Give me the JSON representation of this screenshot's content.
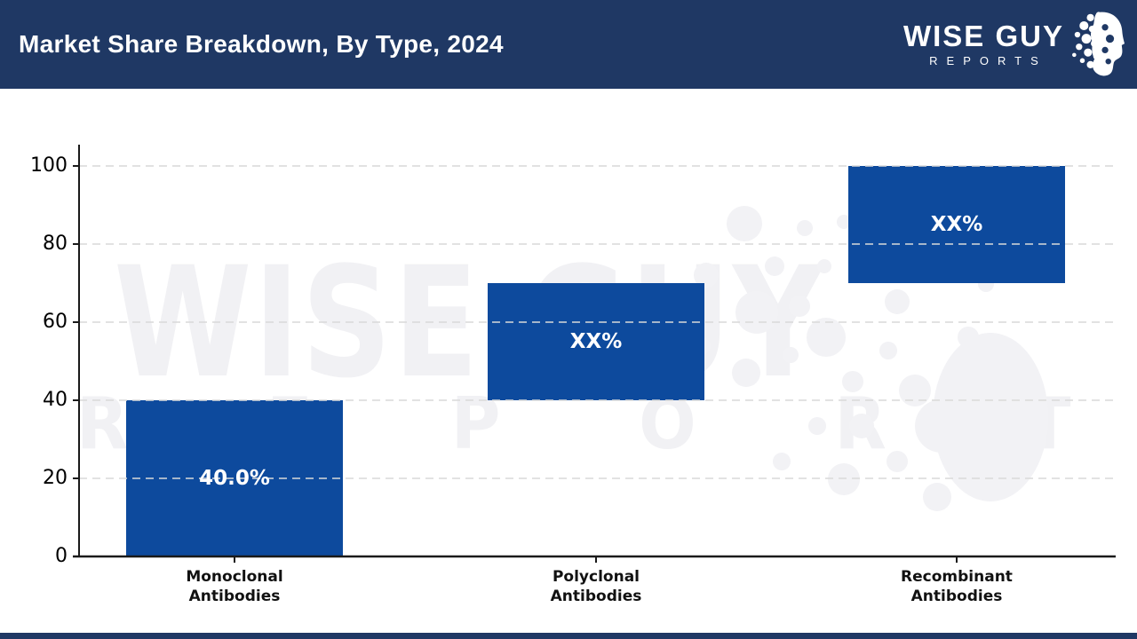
{
  "header": {
    "title": "Market Share Breakdown, By Type, 2024",
    "logo": {
      "brand_top": "WISE GUY",
      "brand_bottom": "REPORTS"
    }
  },
  "watermark": {
    "line1": "WISE GUY",
    "line2": "R E P O R T S"
  },
  "chart_data": {
    "type": "bar",
    "subtype": "floating-segment-breakdown",
    "title": "Market Share Breakdown, By Type, 2024",
    "categories": [
      [
        "Monoclonal",
        "Antibodies"
      ],
      [
        "Polyclonal",
        "Antibodies"
      ],
      [
        "Recombinant",
        "Antibodies"
      ]
    ],
    "segments": [
      {
        "category": "Monoclonal Antibodies",
        "from": 0,
        "to": 40,
        "label": "40.0%"
      },
      {
        "category": "Polyclonal Antibodies",
        "from": 40,
        "to": 70,
        "label": "XX%"
      },
      {
        "category": "Recombinant Antibodies",
        "from": 70,
        "to": 100,
        "label": "XX%"
      }
    ],
    "yticks": [
      0,
      20,
      40,
      60,
      80,
      100
    ],
    "ylim": [
      0,
      105
    ],
    "xlabel": "",
    "ylabel": "",
    "legend": "none",
    "grid": "horizontal-dashed",
    "bar_color": "#0d4a9d",
    "bar_label_color": "#ffffff"
  },
  "colors": {
    "header_bg": "#1f3864",
    "footer_bg": "#1f3864",
    "bar": "#0d4a9d",
    "grid_line": "#d9d9d9",
    "axis_line": "#1a1a1a",
    "watermark": "#f1f1f4"
  }
}
